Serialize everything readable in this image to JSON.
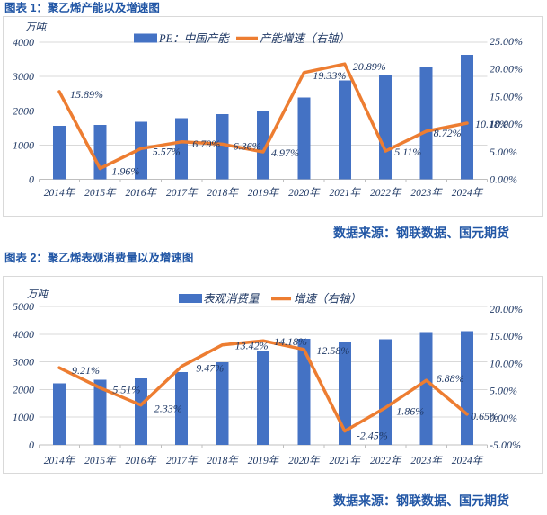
{
  "figures": [
    {
      "caption": "图表 1：聚乙烯产能以及增速图",
      "source": "数据来源：钢联数据、国元期货"
    },
    {
      "caption": "图表 2：聚乙烯表观消费量以及增速图",
      "source": "数据来源：钢联数据、国元期货"
    }
  ],
  "chart_data": [
    {
      "type": "bar+line",
      "title": "聚乙烯产能以及增速图",
      "unit_label": "万吨",
      "categories": [
        "2014年",
        "2015年",
        "2016年",
        "2017年",
        "2018年",
        "2019年",
        "2020年",
        "2021年",
        "2022年",
        "2023年",
        "2024年"
      ],
      "series": [
        {
          "name": "PE：中国产能",
          "type": "bar",
          "axis": "left",
          "values": [
            1560,
            1590,
            1680,
            1790,
            1905,
            2000,
            2385,
            2885,
            3030,
            3295,
            3630
          ]
        },
        {
          "name": "产能增速（右轴）",
          "type": "line",
          "axis": "right",
          "values": [
            15.89,
            1.96,
            5.57,
            6.79,
            6.36,
            4.97,
            19.33,
            20.89,
            5.11,
            8.72,
            10.18
          ],
          "point_labels": [
            "15.89%",
            "1.96%",
            "5.57%",
            "6.79%",
            "6.36%",
            "4.97%",
            "19.33%",
            "20.89%",
            "5.11%",
            "8.72%",
            "10.18%"
          ]
        }
      ],
      "left_axis": {
        "min": 0,
        "max": 4000,
        "tick_values": [
          4000,
          3000,
          2000,
          1000,
          0
        ],
        "tick_labels": [
          "4000",
          "3000",
          "2000",
          "1000",
          "0"
        ]
      },
      "right_axis": {
        "min": 0,
        "max": 25,
        "tick_values": [
          25,
          20,
          15,
          10,
          5,
          0
        ],
        "tick_labels": [
          "25.00%",
          "20.00%",
          "15.00%",
          "10.00%",
          "5.00%",
          "0.00%"
        ]
      },
      "colors": {
        "bar": "#4472C4",
        "line": "#ED7D31",
        "label_text": "#1F3864",
        "grid": "#D9D9D9",
        "axis": "#BFBFBF"
      },
      "grid": true,
      "legend_position": "top-center"
    },
    {
      "type": "bar+line",
      "title": "聚乙烯表观消费量以及增速图",
      "unit_label": "万吨",
      "categories": [
        "2014年",
        "2015年",
        "2016年",
        "2017年",
        "2018年",
        "2019年",
        "2020年",
        "2021年",
        "2022年",
        "2023年",
        "2024年"
      ],
      "series": [
        {
          "name": "表观消费量",
          "type": "bar",
          "axis": "left",
          "values": [
            2225,
            2350,
            2405,
            2630,
            2985,
            3405,
            3835,
            3740,
            3810,
            4075,
            4100
          ]
        },
        {
          "name": "增速（右轴）",
          "type": "line",
          "axis": "right",
          "values": [
            9.21,
            5.51,
            2.33,
            9.47,
            13.42,
            14.18,
            12.58,
            -2.45,
            1.86,
            6.88,
            0.65
          ],
          "point_labels": [
            "9.21%",
            "5.51%",
            "2.33%",
            "9.47%",
            "13.42%",
            "14.18%",
            "12.58%",
            "-2.45%",
            "1.86%",
            "6.88%",
            "0.65%"
          ]
        }
      ],
      "left_axis": {
        "min": 0,
        "max": 5000,
        "tick_values": [
          5000,
          4000,
          3000,
          2000,
          1000,
          0
        ],
        "tick_labels": [
          "5000",
          "4000",
          "3000",
          "2000",
          "1000",
          "0"
        ]
      },
      "right_axis": {
        "min": -5,
        "max": 20,
        "tick_values": [
          20,
          15,
          10,
          5,
          0,
          -5
        ],
        "tick_labels": [
          "20.00%",
          "15.00%",
          "10.00%",
          "5.00%",
          "0.00%",
          "-5.00%"
        ]
      },
      "colors": {
        "bar": "#4472C4",
        "line": "#ED7D31",
        "label_text": "#1F3864",
        "grid": "#D9D9D9",
        "axis": "#BFBFBF"
      },
      "grid": true,
      "legend_position": "top-center"
    }
  ]
}
